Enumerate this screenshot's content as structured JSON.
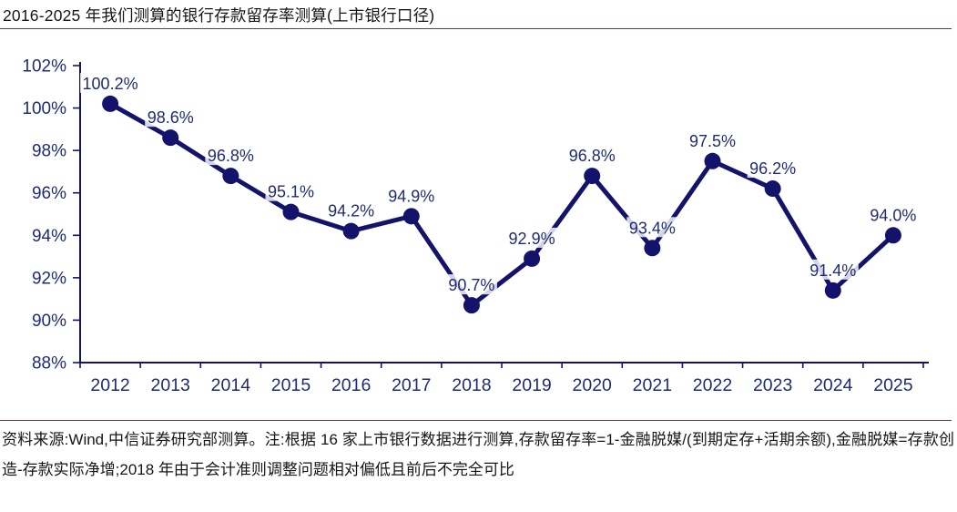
{
  "header": {
    "title": "2016-2025 年我们测算的银行存款留存率测算(上市银行口径)"
  },
  "chart_data": {
    "type": "line",
    "title": "2016-2025 年我们测算的银行存款留存率测算(上市银行口径)",
    "categories": [
      "2012",
      "2013",
      "2014",
      "2015",
      "2016",
      "2017",
      "2018",
      "2019",
      "2020",
      "2021",
      "2022",
      "2023",
      "2024",
      "2025"
    ],
    "values": [
      100.2,
      98.6,
      96.8,
      95.1,
      94.2,
      94.9,
      90.7,
      92.9,
      96.8,
      93.4,
      97.5,
      96.2,
      91.4,
      94.0
    ],
    "point_labels": [
      "100.2%",
      "98.6%",
      "96.8%",
      "95.1%",
      "94.2%",
      "94.9%",
      "90.7%",
      "92.9%",
      "96.8%",
      "93.4%",
      "97.5%",
      "96.2%",
      "91.4%",
      "94.0%"
    ],
    "ytick_labels": [
      "102%",
      "100%",
      "98%",
      "96%",
      "94%",
      "92%",
      "90%",
      "88%"
    ],
    "xlabel": "",
    "ylabel": "",
    "ylim": [
      88,
      102
    ],
    "ytick_step": 2,
    "grid": false,
    "legend": "none",
    "marker": "circle"
  },
  "footer": {
    "source_note": "资料来源:Wind,中信证券研究部测算。注:根据 16 家上市银行数据进行测算,存款留存率=1-金融脱媒/(到期定存+活期余额),金融脱媒=存款创造-存款实际净增;2018 年由于会计准则调整问题相对偏低且前后不完全可比"
  },
  "colors": {
    "line_navy": "#14136b",
    "text_navy": "#1f2c74",
    "rule_red": "#7d3434",
    "body_text": "#161616"
  }
}
